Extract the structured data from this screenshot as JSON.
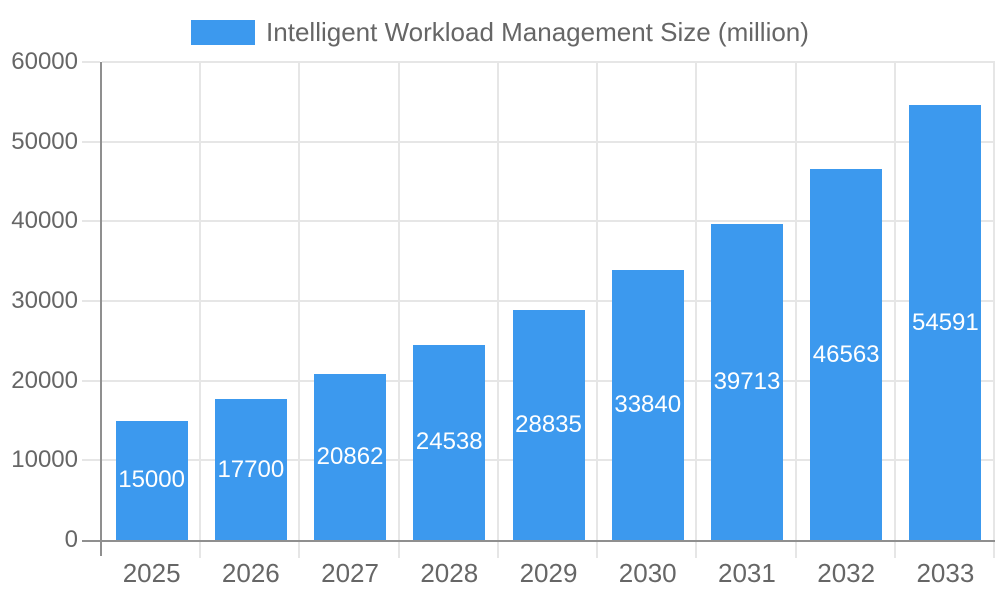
{
  "legend": {
    "label": "Intelligent Workload Management Size (million)"
  },
  "chart_data": {
    "type": "bar",
    "title": "Intelligent Workload Management Size (million)",
    "categories": [
      "2025",
      "2026",
      "2027",
      "2028",
      "2029",
      "2030",
      "2031",
      "2032",
      "2033"
    ],
    "values": [
      15000,
      17700,
      20862,
      24538,
      28835,
      33840,
      39713,
      46563,
      54591
    ],
    "xlabel": "",
    "ylabel": "",
    "ylim": [
      0,
      60000
    ],
    "yticks": [
      0,
      10000,
      20000,
      30000,
      40000,
      50000,
      60000
    ],
    "grid": true,
    "legend_position": "top",
    "value_labels": "centered-inside-bars",
    "colors": {
      "bar": "#3c99ee",
      "grid": "#e6e6e6",
      "axis": "#8f8f8f",
      "tick_text": "#666666",
      "value_label_text": "#ffffff",
      "background": "#ffffff"
    }
  }
}
